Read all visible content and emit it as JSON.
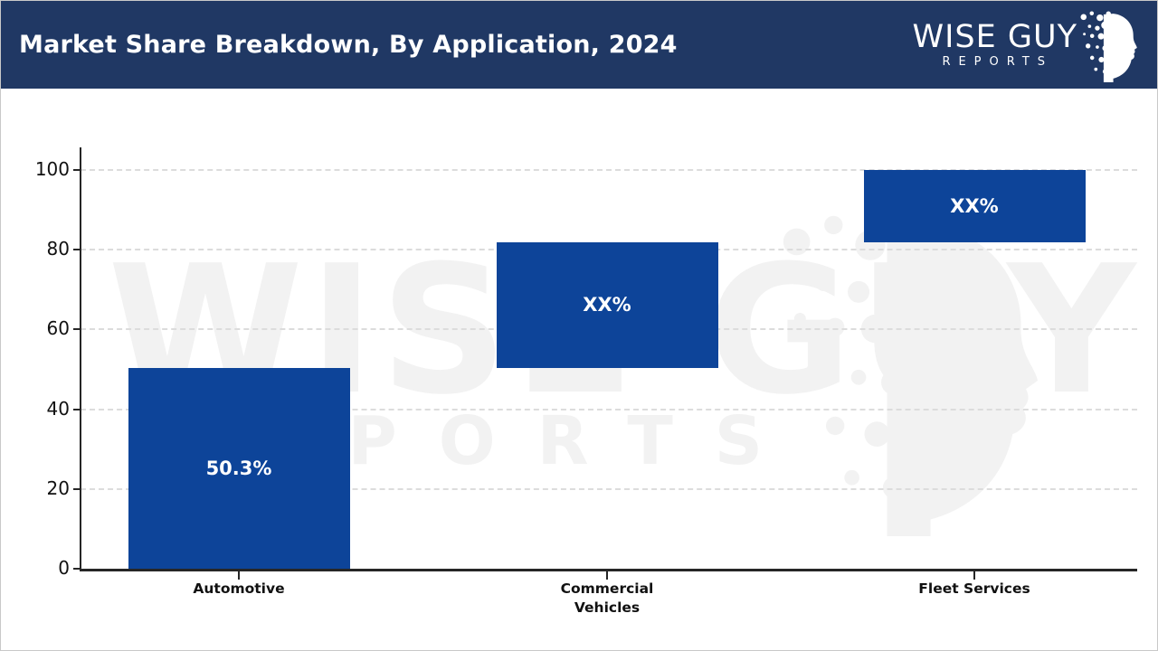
{
  "header": {
    "title": "Market Share Breakdown, By Application, 2024",
    "logo": {
      "line1": "WISE GUY",
      "line2": "REPORTS"
    }
  },
  "watermark": {
    "line1": "WISE GUY",
    "line2": "REPORTS"
  },
  "chart_data": {
    "type": "bar",
    "subtype": "floating-waterfall",
    "title": "Market Share Breakdown, By Application, 2024",
    "categories": [
      "Automotive",
      "Commercial Vehicles",
      "Fleet Services"
    ],
    "series": [
      {
        "name": "Market Share (%)",
        "segments": [
          {
            "category": "Automotive",
            "base": 0,
            "top": 50.3,
            "label": "50.3%"
          },
          {
            "category": "Commercial Vehicles",
            "base": 50.3,
            "top": 81.9,
            "label": "XX%"
          },
          {
            "category": "Fleet Services",
            "base": 81.9,
            "top": 100,
            "label": "XX%"
          }
        ]
      }
    ],
    "xlabel": "",
    "ylabel": "",
    "ylim": [
      0,
      100
    ],
    "yticks": [
      0,
      20,
      40,
      60,
      80,
      100
    ],
    "grid": "horizontal-dashed",
    "legend": "none",
    "bar_color": "#0d4499",
    "bar_label_color": "#ffffff",
    "axis_color": "#262626",
    "gridline_color": "#dcdcdc",
    "header_color": "#203864",
    "watermark_color": "#f2f2f2"
  }
}
